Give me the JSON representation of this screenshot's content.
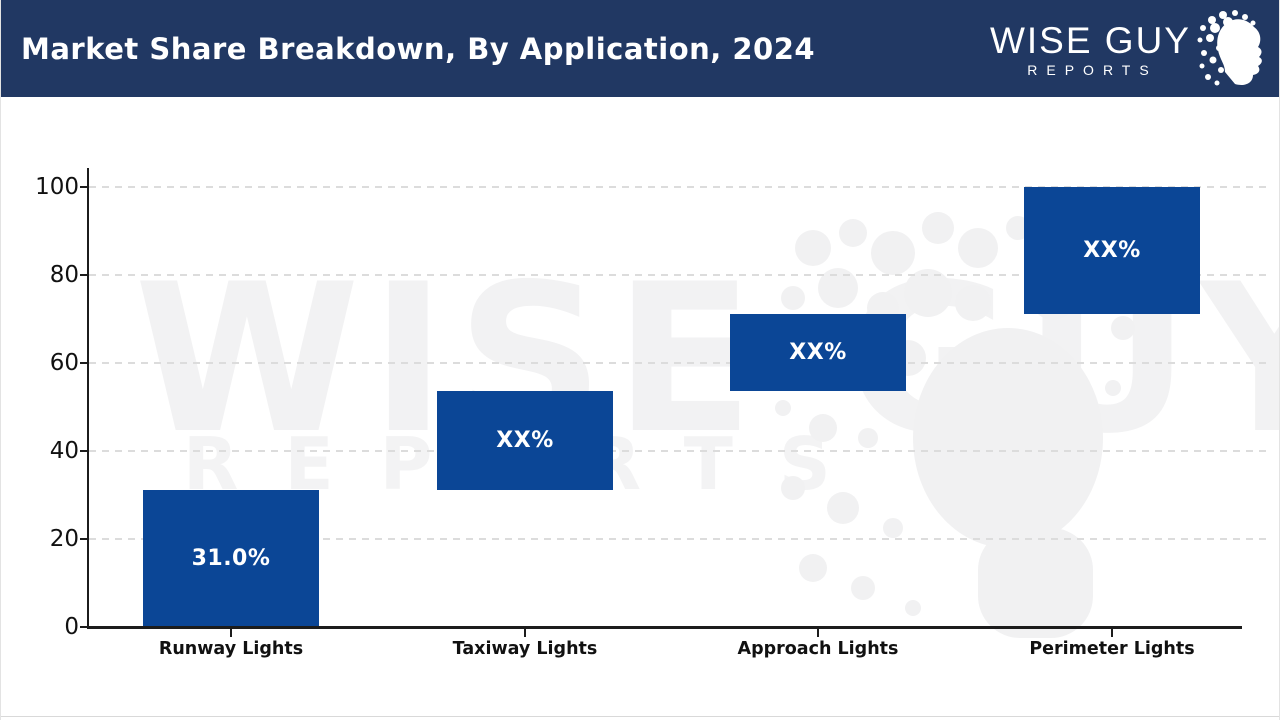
{
  "header": {
    "title": "Market Share Breakdown, By Application, 2024",
    "logo": {
      "name_top": "WISE GUY",
      "name_bottom": "REPORTS"
    }
  },
  "watermark": {
    "line1": "WISE GUY",
    "line2": "REPORTS"
  },
  "colors": {
    "header_bg": "#213863",
    "bar": "#0b4696",
    "bar_label": "#ffffff",
    "grid": "#dcdcdc",
    "axis": "#1c1c1c",
    "tick_label": "#111111",
    "watermark": "#f2f2f3"
  },
  "chart_data": {
    "type": "bar",
    "variant": "waterfall",
    "title": "Market Share Breakdown, By Application, 2024",
    "categories": [
      "Runway Lights",
      "Taxiway Lights",
      "Approach Lights",
      "Perimeter Lights"
    ],
    "series": [
      {
        "name": "Market Share",
        "segments": [
          {
            "category": "Runway Lights",
            "start": 0,
            "end": 31,
            "label": "31.0%"
          },
          {
            "category": "Taxiway Lights",
            "start": 31,
            "end": 53.5,
            "label": "XX%"
          },
          {
            "category": "Approach Lights",
            "start": 53.5,
            "end": 71,
            "label": "XX%"
          },
          {
            "category": "Perimeter Lights",
            "start": 71,
            "end": 100,
            "label": "XX%"
          }
        ]
      }
    ],
    "yticks": [
      0,
      20,
      40,
      60,
      80,
      100
    ],
    "ylim": [
      0,
      104
    ],
    "xlabel": "",
    "ylabel": "",
    "grid": "horizontal-dashed",
    "legend": "none",
    "value_unit": "%"
  }
}
